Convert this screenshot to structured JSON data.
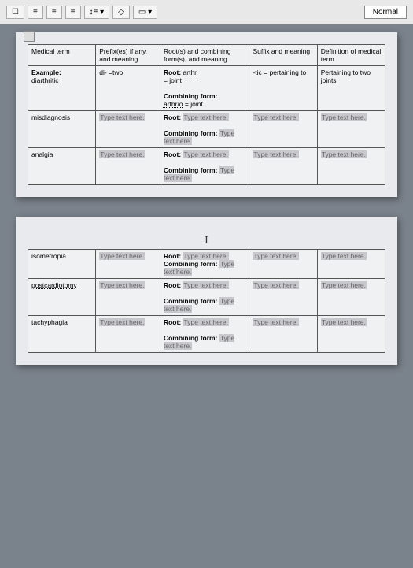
{
  "toolbar": {
    "normal_label": "Normal"
  },
  "headers": {
    "col1": "Medical term",
    "col2": "Prefix(es) if any, and meaning",
    "col3": "Root(s) and combining form(s), and meaning",
    "col4": "Suffix and meaning",
    "col5": "Definition of medical term"
  },
  "rows_page1": [
    {
      "term_bold": "Example:",
      "term_hl": "diarthritic",
      "prefix": "di- =two",
      "root_label": "Root:",
      "root_hl": "arthr",
      "root_after": "= joint",
      "comb_label": "Combining form:",
      "comb_hl": "arthr/o",
      "comb_after": "= joint",
      "suffix": "-tic = pertaining to",
      "def": "Pertaining to two joints"
    },
    {
      "term": "misdiagnosis",
      "prefix_hl": "Type text here.",
      "root_label": "Root:",
      "root_hl": "Type text here.",
      "comb_label": "Combining form:",
      "comb_hl": "Type text here.",
      "suffix_hl": "Type text here.",
      "def_hl": "Type text here."
    },
    {
      "term": "analgia",
      "prefix_hl": "Type text here.",
      "root_label": "Root:",
      "root_hl": "Type text here.",
      "comb_label": "Combining form:",
      "comb_hl": "Type text here.",
      "suffix_hl": "Type text here.",
      "def_hl": "Type text here."
    }
  ],
  "cursor": "I",
  "rows_page2": [
    {
      "term": "isometropia",
      "prefix_hl": "Type text here.",
      "root_label": "Root:",
      "root_hl": "Type text here.",
      "comb_label": "Combining form:",
      "comb_hl": "Type text here.",
      "suffix_hl": "Type text here.",
      "def_hl": "Type text here."
    },
    {
      "term": "postcardiotomy",
      "prefix_hl": "Type text here.",
      "root_label": "Root:",
      "root_hl": "Type text here.",
      "comb_label": "Combining form:",
      "comb_hl": "Type text here.",
      "suffix_hl": "Type text here.",
      "def_hl": "Type text here."
    },
    {
      "term": "tachyphagia",
      "prefix_hl": "Type text here.",
      "root_label": "Root:",
      "root_hl": "Type text here.",
      "comb_label": "Combining form:",
      "comb_hl": "Type text here.",
      "suffix_hl": "Type text here.",
      "def_hl": "Type text here."
    }
  ],
  "styling": {
    "page_bg": "#e8eaed",
    "body_bg": "#7a828b",
    "border_color": "#555",
    "highlight_bg": "#c8c8cc",
    "font_size_pt": 8.5
  }
}
